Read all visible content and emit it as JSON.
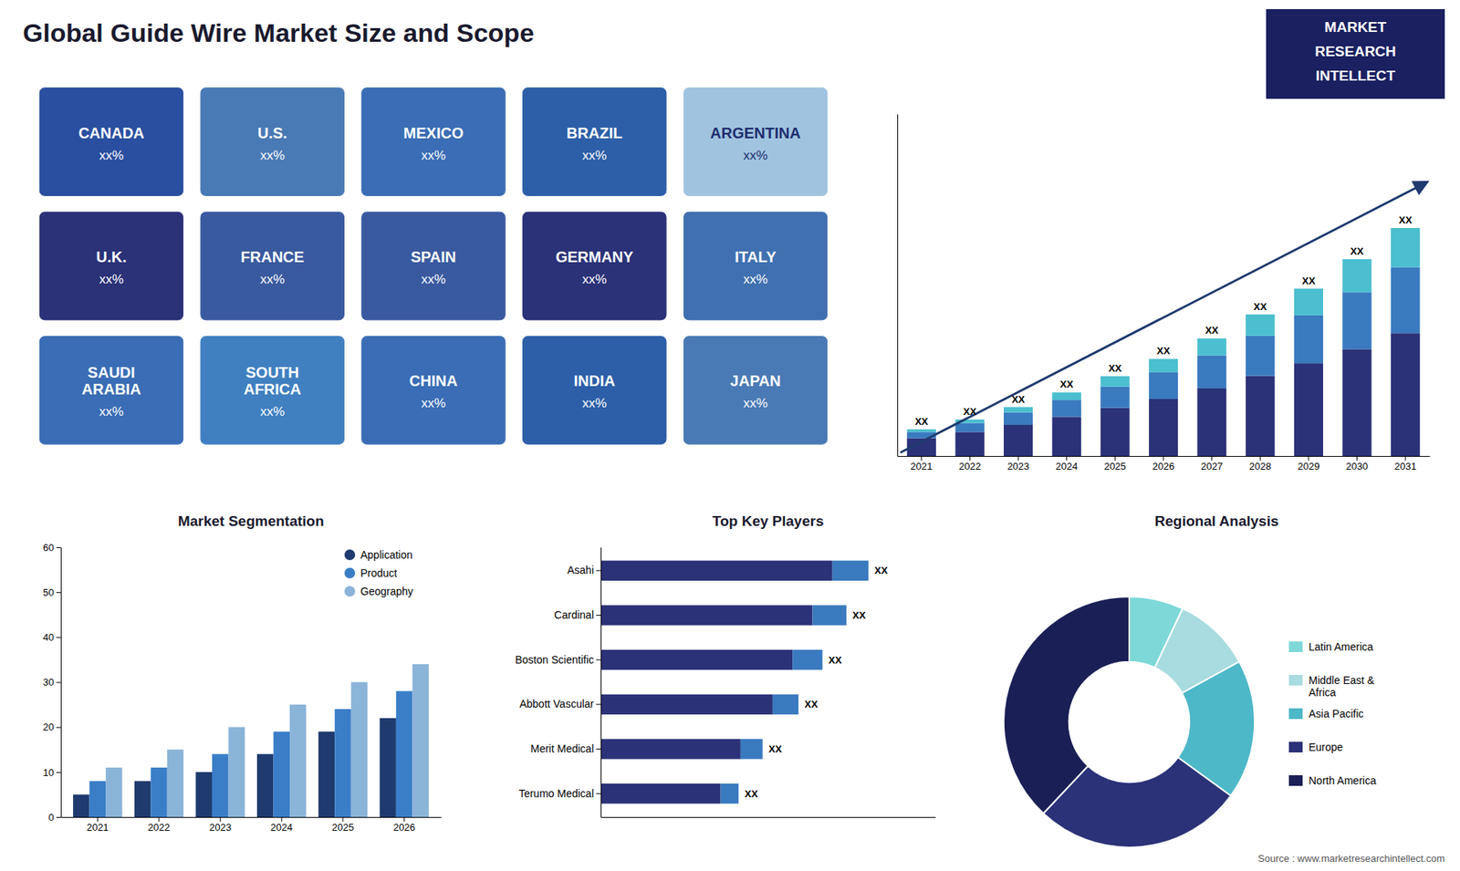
{
  "chart_data": [
    {
      "type": "map",
      "title": "Global Guide Wire Market Size and Scope",
      "subtitle": "Source : www.marketresearchintellect.com",
      "categories": [
        "CANADA",
        "U.S.",
        "MEXICO",
        "BRAZIL",
        "ARGENTINA",
        "U.K.",
        "FRANCE",
        "SPAIN",
        "GERMANY",
        "ITALY",
        "SAUDI\nARABIA",
        "SOUTH\nAFRICA",
        "CHINA",
        "INDIA",
        "JAPAN"
      ],
      "colors": [
        "#2a4fa0",
        "#4a7ab5",
        "#3a6db5",
        "#2d5fa8",
        "#a0c4e0",
        "#2b3278",
        "#3a5aa0",
        "#3a5aa0",
        "#2b3278",
        "#4070b0",
        "#3a6db5",
        "#4080c0",
        "#3a6db5",
        "#2d5fa8",
        "#4a7ab5"
      ],
      "annotations": [
        "xx%",
        "xx%",
        "xx%",
        "xx%",
        "xx%",
        "xx%",
        "xx%",
        "xx%",
        "xx%",
        "xx%",
        "xx%",
        "xx%",
        "xx%",
        "xx%",
        "xx%"
      ]
    },
    {
      "type": "bar",
      "stacked": true,
      "categories": [
        "2021",
        "2022",
        "2023",
        "2024",
        "2025",
        "2026",
        "2027",
        "2028",
        "2029",
        "2030",
        "2031"
      ],
      "series": [
        {
          "color": "#2b3278",
          "values": [
            1.0,
            1.35,
            1.75,
            2.2,
            2.7,
            3.2,
            3.8,
            4.5,
            5.2,
            6.0,
            6.9
          ]
        },
        {
          "color": "#3a7abf",
          "values": [
            0.35,
            0.5,
            0.7,
            0.95,
            1.2,
            1.5,
            1.85,
            2.25,
            2.7,
            3.2,
            3.7
          ]
        },
        {
          "color": "#4bbfcf",
          "values": [
            0.15,
            0.2,
            0.3,
            0.42,
            0.58,
            0.75,
            0.95,
            1.2,
            1.5,
            1.85,
            2.2
          ],
          "value_labels": [
            "XX",
            "XX",
            "XX",
            "XX",
            "XX",
            "XX",
            "XX",
            "XX",
            "XX",
            "XX",
            "XX"
          ]
        }
      ],
      "ylim": [
        0,
        19.2
      ],
      "yticks": [],
      "tick_labels": "x",
      "annotations": [
        "MARKET",
        "RESEARCH",
        "INTELLECT"
      ]
    },
    {
      "type": "bar",
      "title": "Market Segmentation",
      "categories": [
        "2021",
        "2022",
        "2023",
        "2024",
        "2025",
        "2026"
      ],
      "series": [
        {
          "name": "Application",
          "color": "#1e3a6e",
          "values": [
            5,
            8,
            10,
            14,
            19,
            22
          ]
        },
        {
          "name": "Product",
          "color": "#3a7ec8",
          "values": [
            8,
            11,
            14,
            19,
            24,
            28
          ]
        },
        {
          "name": "Geography",
          "color": "#8ab4d8",
          "values": [
            11,
            15,
            20,
            25,
            30,
            34
          ]
        }
      ],
      "ylim": [
        0,
        60
      ],
      "yticks": [
        0,
        10,
        20,
        30,
        40,
        50,
        60
      ],
      "legend": "upper right",
      "grid": false
    },
    {
      "type": "bar",
      "orientation": "horizontal",
      "stacked": true,
      "title": "Top Key Players",
      "categories": [
        "Asahi",
        "Cardinal",
        "Boston Scientific",
        "Abbott Vascular",
        "Merit Medical",
        "Terumo Medical"
      ],
      "series": [
        {
          "color": "#2b3278",
          "values": [
            5.8,
            5.3,
            4.8,
            4.3,
            3.5,
            3.0
          ]
        },
        {
          "color": "#3a7abf",
          "values": [
            0.9,
            0.85,
            0.75,
            0.65,
            0.55,
            0.45
          ],
          "value_labels": [
            "XX",
            "XX",
            "XX",
            "XX",
            "XX",
            "XX"
          ]
        }
      ],
      "xlim": [
        0,
        8.375
      ],
      "xticks": [],
      "tick_labels": "y"
    },
    {
      "type": "donut",
      "title": "Regional Analysis",
      "categories": [
        "Latin America",
        "Middle East &\nAfrica",
        "Asia Pacific",
        "Europe",
        "North America"
      ],
      "values": [
        7,
        10,
        18,
        27,
        38
      ],
      "colors": [
        "#7ed8d8",
        "#a8dce0",
        "#4db8c8",
        "#2b3278",
        "#1a1f55"
      ],
      "legend": "right"
    }
  ]
}
